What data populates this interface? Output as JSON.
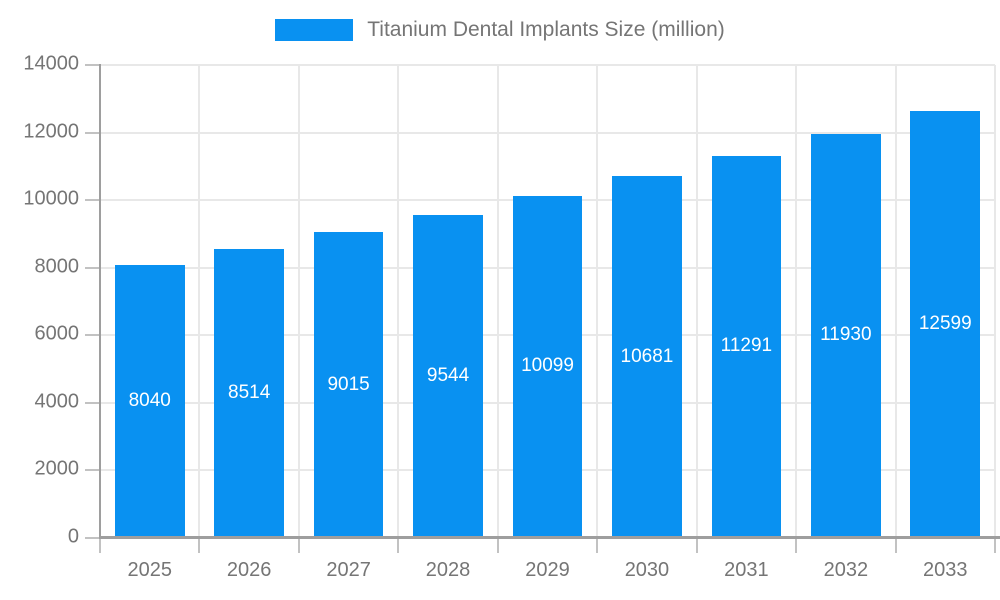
{
  "colors": {
    "bar": "#0991f1",
    "bar_label": "#ffffff",
    "axis_line": "#9e9e9e",
    "tick_line": "#c2c2c2",
    "grid_line": "#e8e8e8",
    "axis_text": "#757575"
  },
  "legend": {
    "position": "top",
    "label": "Titanium Dental Implants Size (million)"
  },
  "chart_data": {
    "type": "bar",
    "title": "Titanium Dental Implants Size (million)",
    "categories": [
      "2025",
      "2026",
      "2027",
      "2028",
      "2029",
      "2030",
      "2031",
      "2032",
      "2033"
    ],
    "values": [
      8040,
      8514,
      9015,
      9544,
      10099,
      10681,
      11291,
      11930,
      12599
    ],
    "yticks": [
      0,
      2000,
      4000,
      6000,
      8000,
      10000,
      12000,
      14000
    ],
    "xlabel": "",
    "ylabel": "",
    "ylim": [
      0,
      14000
    ],
    "ytick_step": 2000,
    "grid": true,
    "legend_position": "top",
    "value_labels": "inside-center-white"
  }
}
